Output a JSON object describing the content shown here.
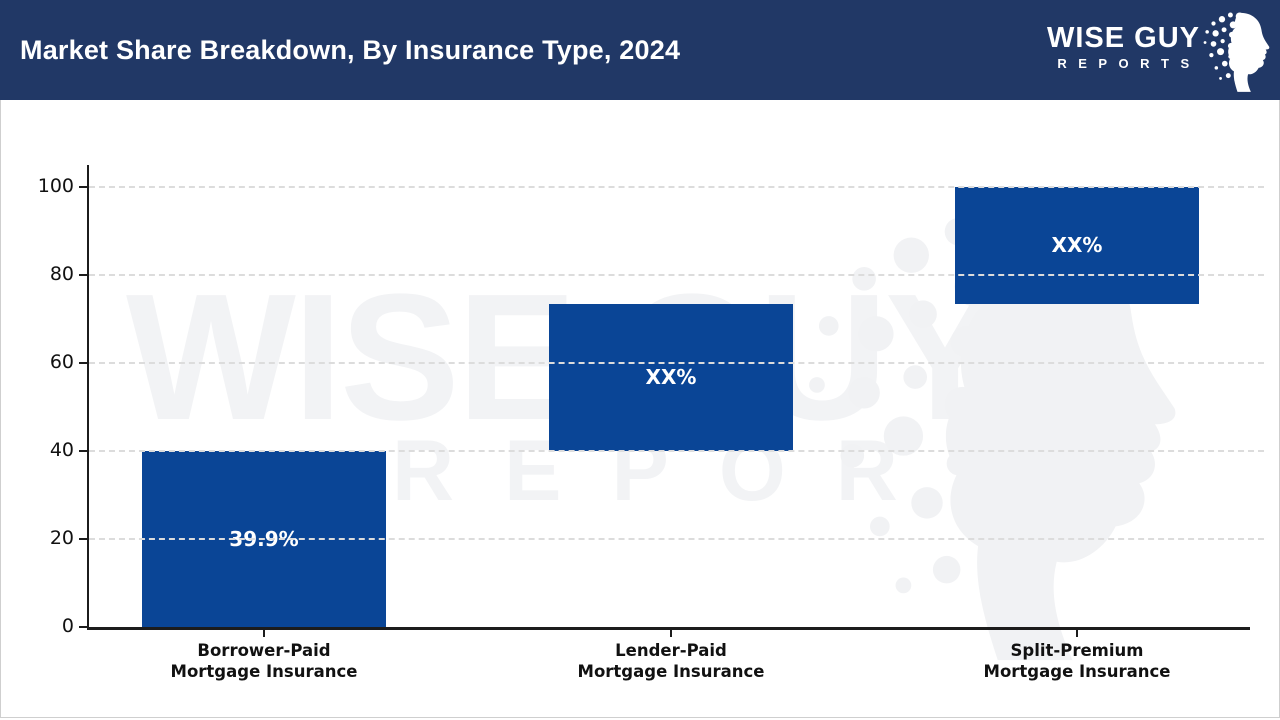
{
  "header": {
    "title": "Market Share Breakdown, By Insurance Type, 2024",
    "logo": {
      "line1": "WISE GUY",
      "line2": "REPORTS"
    }
  },
  "watermark": {
    "line1": "WISE GUY",
    "line2": "REPORTS"
  },
  "chart_data": {
    "type": "bar",
    "variant": "floating-stacked-percentage",
    "title": "Market Share Breakdown, By Insurance Type, 2024",
    "categories": [
      "Borrower-Paid\nMortgage Insurance",
      "Lender-Paid\nMortgage Insurance",
      "Split-Premium\nMortgage Insurance"
    ],
    "series": [
      {
        "category": "Borrower-Paid Mortgage Insurance",
        "start": 0,
        "end": 40,
        "label": "39.9%"
      },
      {
        "category": "Lender-Paid Mortgage Insurance",
        "start": 40,
        "end": 73.5,
        "label": "XX%"
      },
      {
        "category": "Split-Premium Mortgage Insurance",
        "start": 73.5,
        "end": 100,
        "label": "XX%"
      }
    ],
    "yticks": [
      0,
      20,
      40,
      60,
      80,
      100
    ],
    "ylim": [
      0,
      105
    ],
    "xlabel": "",
    "ylabel": "",
    "grid": "dashed-horizontal",
    "legend": "none",
    "bar_color": "#0a4596",
    "bar_label_color": "#ffffff"
  },
  "colors": {
    "header_bg": "#213866",
    "bar": "#0a4596",
    "grid": "#dcdcdc",
    "axis": "#1c1c1c",
    "watermark": "#f2f3f5",
    "frame_border": "#cfcfcf"
  }
}
